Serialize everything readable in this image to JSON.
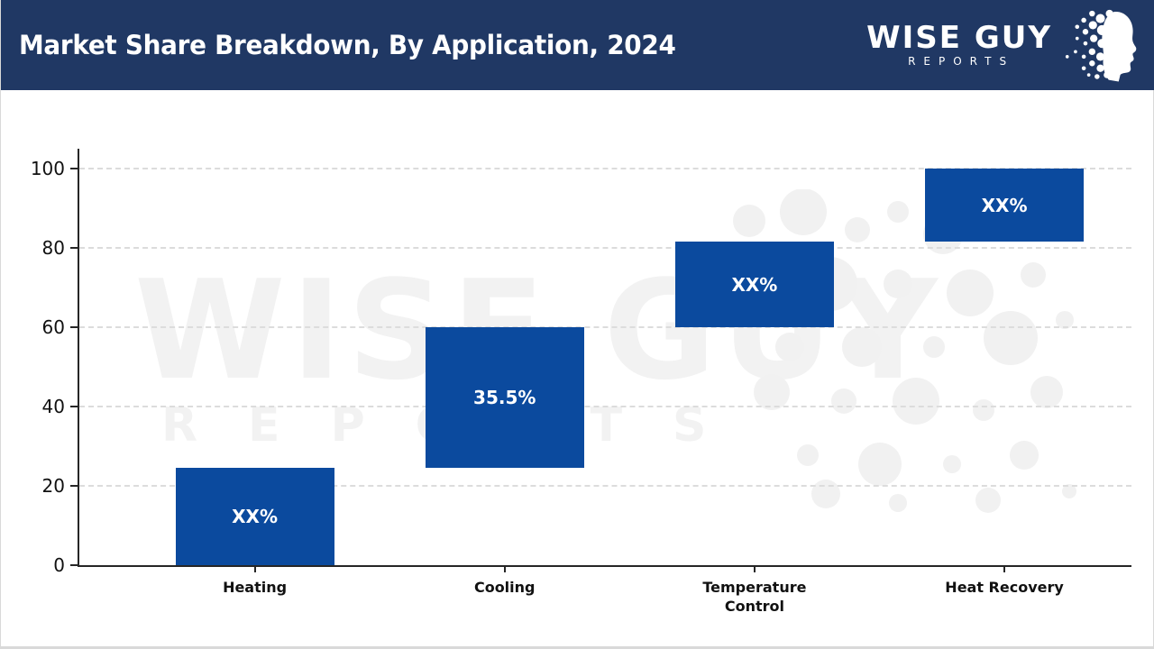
{
  "header": {
    "title": "Market Share Breakdown, By Application, 2024",
    "logo": {
      "line1": "WISE GUY",
      "line2": "REPORTS"
    }
  },
  "watermark": {
    "line1": "WISE GUY",
    "line2": "REPORTS"
  },
  "colors": {
    "header_bg": "#203864",
    "bar": "#0b4a9e",
    "bar_label": "#ffffff",
    "grid": "#dcdcdc",
    "axis": "#262626",
    "watermark": "#f2f2f2"
  },
  "chart_data": {
    "type": "bar",
    "subtype": "waterfall",
    "title": "Market Share Breakdown, By Application, 2024",
    "xlabel": "",
    "ylabel": "",
    "categories": [
      "Heating",
      "Cooling",
      "Temperature Control",
      "Heat Recovery"
    ],
    "bars": [
      {
        "category": "Heating",
        "label": "XX%",
        "start": 0,
        "end": 24.5
      },
      {
        "category": "Cooling",
        "label": "35.5%",
        "start": 24.5,
        "end": 60
      },
      {
        "category": "Temperature Control",
        "label": "XX%",
        "start": 60,
        "end": 81.5
      },
      {
        "category": "Heat Recovery",
        "label": "XX%",
        "start": 81.5,
        "end": 100
      }
    ],
    "yticks": [
      0,
      20,
      40,
      60,
      80,
      100
    ],
    "ylim": [
      0,
      105
    ],
    "grid": "horizontal-dashed",
    "legend": "none"
  }
}
